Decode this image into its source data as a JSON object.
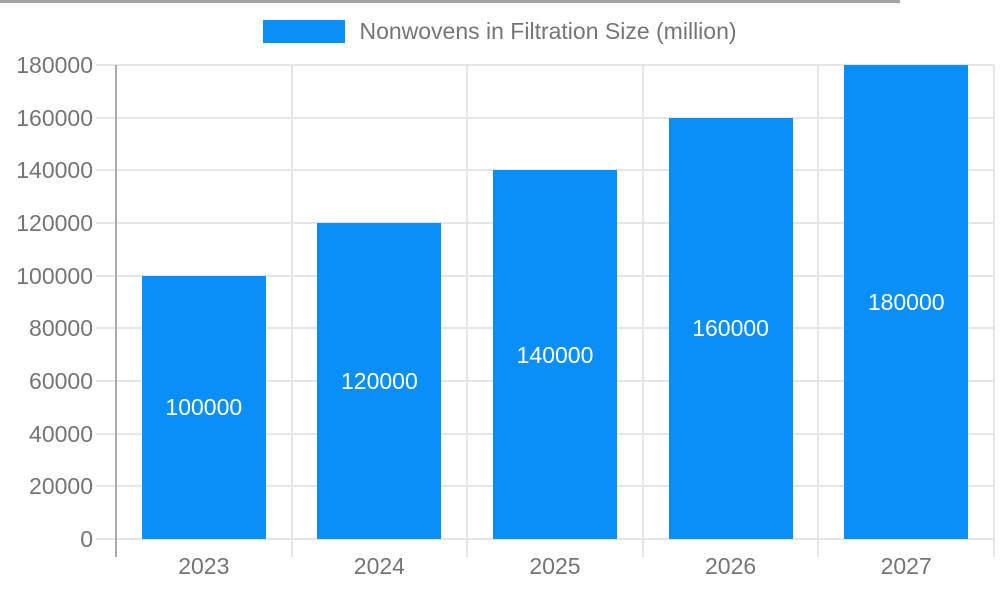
{
  "chart_data": {
    "type": "bar",
    "title": "Nonwovens in Filtration Size (million)",
    "categories": [
      "2023",
      "2024",
      "2025",
      "2026",
      "2027"
    ],
    "values": [
      100000,
      120000,
      140000,
      160000,
      180000
    ],
    "value_labels": [
      "100000",
      "120000",
      "140000",
      "160000",
      "180000"
    ],
    "xlabel": "",
    "ylabel": "",
    "ylim": [
      0,
      180000
    ],
    "ytick_step": 20000,
    "ytick_labels": [
      "0",
      "20000",
      "40000",
      "60000",
      "80000",
      "100000",
      "120000",
      "140000",
      "160000",
      "180000"
    ],
    "grid": true,
    "legend_position": "top",
    "colors": {
      "bar": "#0a8ff8",
      "bar_value_label": "#ffffff",
      "axis_text": "#757575",
      "gridline": "#e6e6e6",
      "x_axis_line": "#a3a3a3",
      "y_axis_line": "#ababab",
      "background": "#ffffff"
    }
  }
}
